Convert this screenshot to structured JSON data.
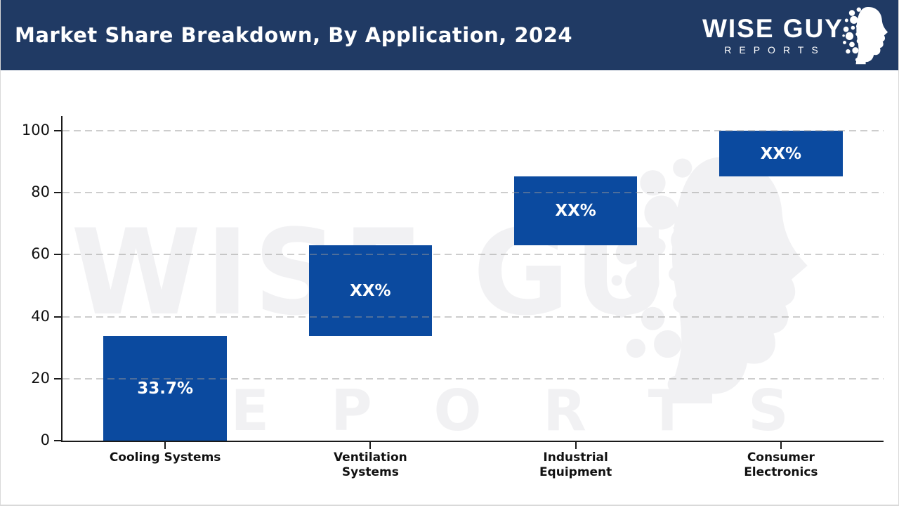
{
  "header": {
    "title": "Market Share Breakdown, By Application, 2024",
    "background": "#203a64",
    "logo": {
      "primary": "WISE GUY",
      "secondary": "REPORTS"
    }
  },
  "watermark": {
    "primary": "WISE GUY",
    "secondary": "R E P O R T S"
  },
  "icons": {
    "logo_head": "dotted-face-profile"
  },
  "colors": {
    "bar": "#0b4a9f",
    "bar_label": "#ffffff",
    "header_bg": "#203a64",
    "axis": "#1a1a1a",
    "watermark": "#f1f1f3"
  },
  "chart_data": {
    "type": "bar",
    "variant": "floating-segment waterfall of market share, segments stack to 100%",
    "title": "Market Share Breakdown, By Application, 2024",
    "categories": [
      "Cooling Systems",
      "Ventilation Systems",
      "Industrial Equipment",
      "Consumer Electronics"
    ],
    "axis_labels": [
      "Cooling Systems",
      "Ventilation\nSystems",
      "Industrial\nEquipment",
      "Consumer\nElectronics"
    ],
    "bars": [
      {
        "category": "Cooling Systems",
        "start": 0,
        "end": 33.7,
        "label": "33.7%"
      },
      {
        "category": "Ventilation Systems",
        "start": 33.7,
        "end": 63.0,
        "label": "XX%"
      },
      {
        "category": "Industrial Equipment",
        "start": 63.0,
        "end": 85.2,
        "label": "XX%"
      },
      {
        "category": "Consumer Electronics",
        "start": 85.2,
        "end": 100,
        "label": "XX%"
      }
    ],
    "yticks": [
      0,
      20,
      40,
      60,
      80,
      100
    ],
    "ylim": [
      0,
      104.5
    ],
    "xlabel": "",
    "ylabel": "",
    "grid": "horizontal dashed gridlines drawn over bars",
    "legend": "none"
  }
}
